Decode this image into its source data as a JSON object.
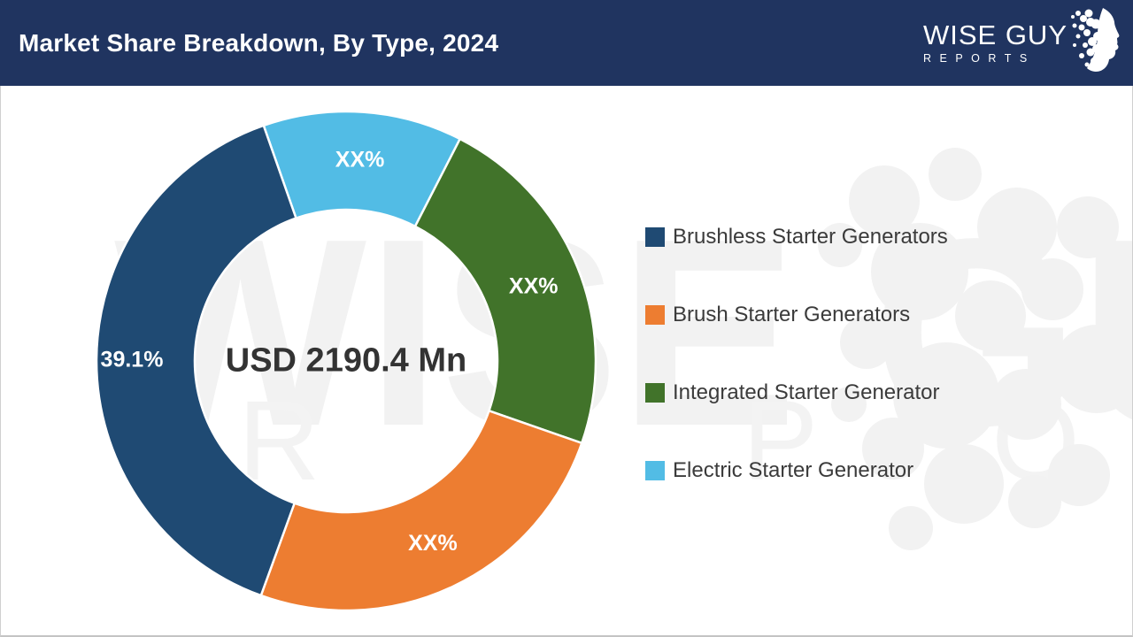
{
  "header": {
    "title": "Market Share Breakdown, By Type, 2024",
    "logo_line1": "WISE GUY",
    "logo_line2": "REPORTS"
  },
  "colors": {
    "header_bg": "#203460",
    "brushless_blue": "#1F4A73",
    "brush_orange": "#ED7D31",
    "integrated_green": "#41732A",
    "electric_lightblue": "#52BCE5",
    "center_text": "#333333"
  },
  "chart_data": {
    "type": "pie",
    "subtype": "donut",
    "title": "Market Share Breakdown, By Type, 2024",
    "center_label": "USD 2190.4 Mn",
    "start_angle_deg": -19.3,
    "legend_position": "right",
    "segments": [
      {
        "label": "Electric Starter Generator",
        "value": 12.9,
        "display_label": "XX%",
        "color": "#52BCE5"
      },
      {
        "label": "Integrated Starter Generator",
        "value": 22.8,
        "display_label": "XX%",
        "color": "#41732A"
      },
      {
        "label": "Brush Starter Generators",
        "value": 25.2,
        "display_label": "XX%",
        "color": "#ED7D31"
      },
      {
        "label": "Brushless Starter Generators",
        "value": 39.1,
        "display_label": "39.1%",
        "color": "#1F4A73"
      }
    ]
  },
  "legend": {
    "items": [
      {
        "label": "Brushless Starter Generators",
        "color": "#1F4A73"
      },
      {
        "label": "Brush Starter Generators",
        "color": "#ED7D31"
      },
      {
        "label": "Integrated Starter Generator",
        "color": "#41732A"
      },
      {
        "label": "Electric Starter Generator",
        "color": "#52BCE5"
      }
    ]
  },
  "watermark": {
    "line1": "WISE GUY",
    "line2": "REPORTS"
  }
}
